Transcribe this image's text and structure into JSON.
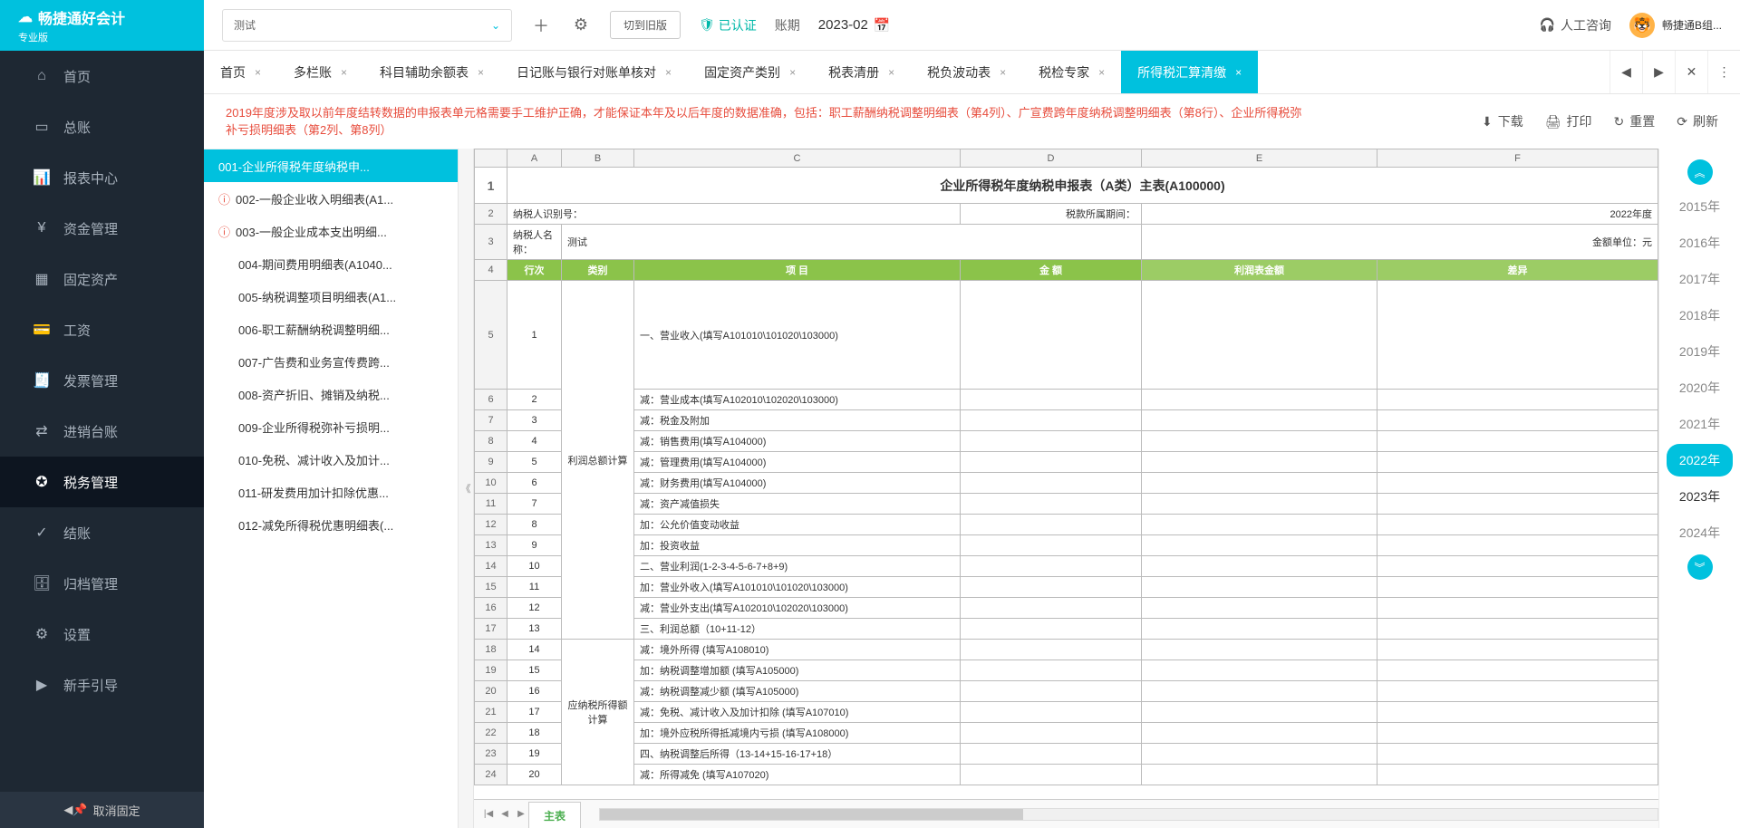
{
  "brand": {
    "name": "畅捷通好会计",
    "edition": "专业版",
    "logo_icon": "cloud"
  },
  "topbar": {
    "account": "测试",
    "old_version_btn": "切到旧版",
    "verified": "已认证",
    "period_label": "账期",
    "period_value": "2023-02",
    "support": "人工咨询",
    "user": "畅捷通B组..."
  },
  "sidebar": {
    "items": [
      {
        "icon": "⌂",
        "label": "首页"
      },
      {
        "icon": "▭",
        "label": "总账"
      },
      {
        "icon": "📊",
        "label": "报表中心"
      },
      {
        "icon": "¥",
        "label": "资金管理"
      },
      {
        "icon": "▦",
        "label": "固定资产"
      },
      {
        "icon": "💳",
        "label": "工资"
      },
      {
        "icon": "🧾",
        "label": "发票管理"
      },
      {
        "icon": "⇄",
        "label": "进销台账"
      },
      {
        "icon": "✪",
        "label": "税务管理"
      },
      {
        "icon": "✓",
        "label": "结账"
      },
      {
        "icon": "🗄",
        "label": "归档管理"
      },
      {
        "icon": "⚙",
        "label": "设置"
      },
      {
        "icon": "▶",
        "label": "新手引导"
      }
    ],
    "footer": "取消固定"
  },
  "tabs": [
    {
      "label": "首页",
      "closable": true
    },
    {
      "label": "多栏账",
      "closable": true
    },
    {
      "label": "科目辅助余额表",
      "closable": true
    },
    {
      "label": "日记账与银行对账单核对",
      "closable": true
    },
    {
      "label": "固定资产类别",
      "closable": true
    },
    {
      "label": "税表清册",
      "closable": true
    },
    {
      "label": "税负波动表",
      "closable": true
    },
    {
      "label": "税检专家",
      "closable": true
    },
    {
      "label": "所得税汇算清缴",
      "closable": true,
      "active": true
    }
  ],
  "warning": "2019年度涉及取以前年度结转数据的申报表单元格需要手工维护正确，才能保证本年及以后年度的数据准确，包括：职工薪酬纳税调整明细表（第4列）、广宣费跨年度纳税调整明细表（第8行）、企业所得税弥补亏损明细表（第2列、第8列）",
  "toolbar": {
    "download": "下载",
    "print": "打印",
    "reset": "重置",
    "refresh": "刷新"
  },
  "forms": [
    {
      "label": "001-企业所得税年度纳税申...",
      "active": true
    },
    {
      "label": "002-一般企业收入明细表(A1...",
      "warn": true
    },
    {
      "label": "003-一般企业成本支出明细...",
      "warn": true
    },
    {
      "label": "004-期间费用明细表(A1040...",
      "indent": true
    },
    {
      "label": "005-纳税调整项目明细表(A1...",
      "indent": true
    },
    {
      "label": "006-职工薪酬纳税调整明细...",
      "indent": true
    },
    {
      "label": "007-广告费和业务宣传费跨...",
      "indent": true
    },
    {
      "label": "008-资产折旧、摊销及纳税...",
      "indent": true
    },
    {
      "label": "009-企业所得税弥补亏损明...",
      "indent": true
    },
    {
      "label": "010-免税、减计收入及加计...",
      "indent": true
    },
    {
      "label": "011-研发费用加计扣除优惠...",
      "indent": true
    },
    {
      "label": "012-减免所得税优惠明细表(...",
      "indent": true
    }
  ],
  "sheet": {
    "title": "企业所得税年度纳税申报表（A类）主表(A100000)",
    "taxpayer_id_label": "纳税人识别号：",
    "tax_period_label": "税款所属期间：",
    "tax_year": "2022年度",
    "taxpayer_name_label": "纳税人名称：",
    "taxpayer_name": "测试",
    "unit_label": "金额单位：元",
    "col_headers": [
      "A",
      "B",
      "C",
      "D",
      "E",
      "F"
    ],
    "header_row": {
      "line": "行次",
      "category": "类别",
      "item": "项    目",
      "amount": "金    额",
      "profit": "利润表金额",
      "diff": "差异"
    },
    "cat1": "利润总额计算",
    "cat2": "应纳税所得额计算",
    "rows": [
      {
        "r": 5,
        "n": "1",
        "item": "一、营业收入(填写A101010\\101020\\103000)",
        "tall": true
      },
      {
        "r": 6,
        "n": "2",
        "item": "减：营业成本(填写A102010\\102020\\103000)"
      },
      {
        "r": 7,
        "n": "3",
        "item": "减：税金及附加"
      },
      {
        "r": 8,
        "n": "4",
        "item": "减：销售费用(填写A104000)"
      },
      {
        "r": 9,
        "n": "5",
        "item": "减：管理费用(填写A104000)"
      },
      {
        "r": 10,
        "n": "6",
        "item": "减：财务费用(填写A104000)"
      },
      {
        "r": 11,
        "n": "7",
        "item": "减：资产减值损失"
      },
      {
        "r": 12,
        "n": "8",
        "item": "加：公允价值变动收益"
      },
      {
        "r": 13,
        "n": "9",
        "item": "加：投资收益"
      },
      {
        "r": 14,
        "n": "10",
        "item": "二、营业利润(1-2-3-4-5-6-7+8+9)"
      },
      {
        "r": 15,
        "n": "11",
        "item": "加：营业外收入(填写A101010\\101020\\103000)"
      },
      {
        "r": 16,
        "n": "12",
        "item": "减：营业外支出(填写A102010\\102020\\103000)"
      },
      {
        "r": 17,
        "n": "13",
        "item": "三、利润总额（10+11-12）"
      },
      {
        "r": 18,
        "n": "14",
        "item": "减：境外所得 (填写A108010)"
      },
      {
        "r": 19,
        "n": "15",
        "item": "加：纳税调整增加额 (填写A105000)"
      },
      {
        "r": 20,
        "n": "16",
        "item": "减：纳税调整减少额 (填写A105000)"
      },
      {
        "r": 21,
        "n": "17",
        "item": "减：免税、减计收入及加计扣除 (填写A107010)"
      },
      {
        "r": 22,
        "n": "18",
        "item": "加：境外应税所得抵减境内亏损 (填写A108000)"
      },
      {
        "r": 23,
        "n": "19",
        "item": "四、纳税调整后所得（13-14+15-16-17+18）"
      },
      {
        "r": 24,
        "n": "20",
        "item": "减：所得减免 (填写A107020)"
      }
    ],
    "tab": "主表"
  },
  "years": {
    "list": [
      "2015年",
      "2016年",
      "2017年",
      "2018年",
      "2019年",
      "2020年",
      "2021年",
      "2022年",
      "2023年",
      "2024年"
    ],
    "active": "2022年",
    "current": "2023年"
  },
  "colors": {
    "primary": "#00c1de",
    "sidebar_bg": "#1e2833",
    "warning_text": "#e74c3c",
    "header_green": "#8bc34a",
    "header_lightgreen": "#9ccc65"
  }
}
